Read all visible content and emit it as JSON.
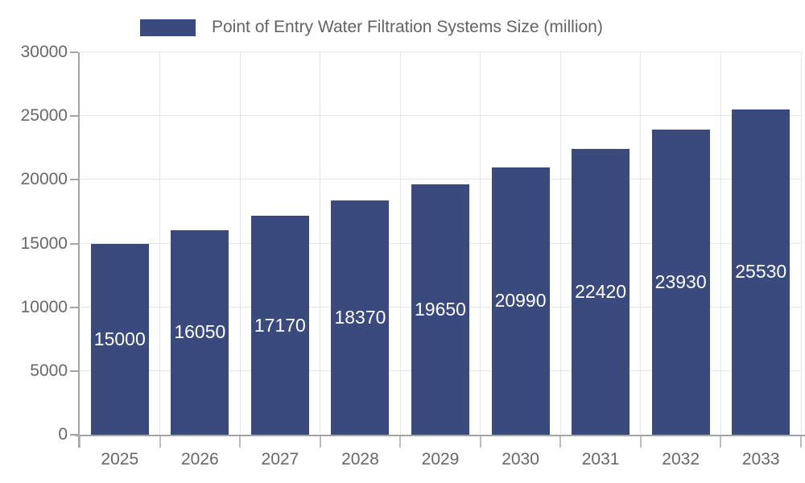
{
  "chart_data": {
    "type": "bar",
    "title": "Point of Entry Water Filtration Systems Size (million)",
    "legend_position": "top",
    "categories": [
      "2025",
      "2026",
      "2027",
      "2028",
      "2029",
      "2030",
      "2031",
      "2032",
      "2033"
    ],
    "values": [
      15000,
      16050,
      17170,
      18370,
      19650,
      20990,
      22420,
      23930,
      25530
    ],
    "bar_labels": [
      "15000",
      "16050",
      "17170",
      "18370",
      "19650",
      "20990",
      "22420",
      "23930",
      "25530"
    ],
    "xlabel": "",
    "ylabel": "",
    "ylim": [
      0,
      30000
    ],
    "ytick_interval": 5000,
    "yticks": [
      "0",
      "5000",
      "10000",
      "15000",
      "20000",
      "25000",
      "30000"
    ],
    "grid": "both",
    "colors": {
      "bar": "#3a4a7d",
      "grid": "#e7e7e7",
      "axis": "#a5a5a5",
      "tick": "#bdbdbd",
      "axis_text": "#686868",
      "legend_text": "#636363",
      "value_label": "#ffffff",
      "background": "#ffffff"
    }
  }
}
